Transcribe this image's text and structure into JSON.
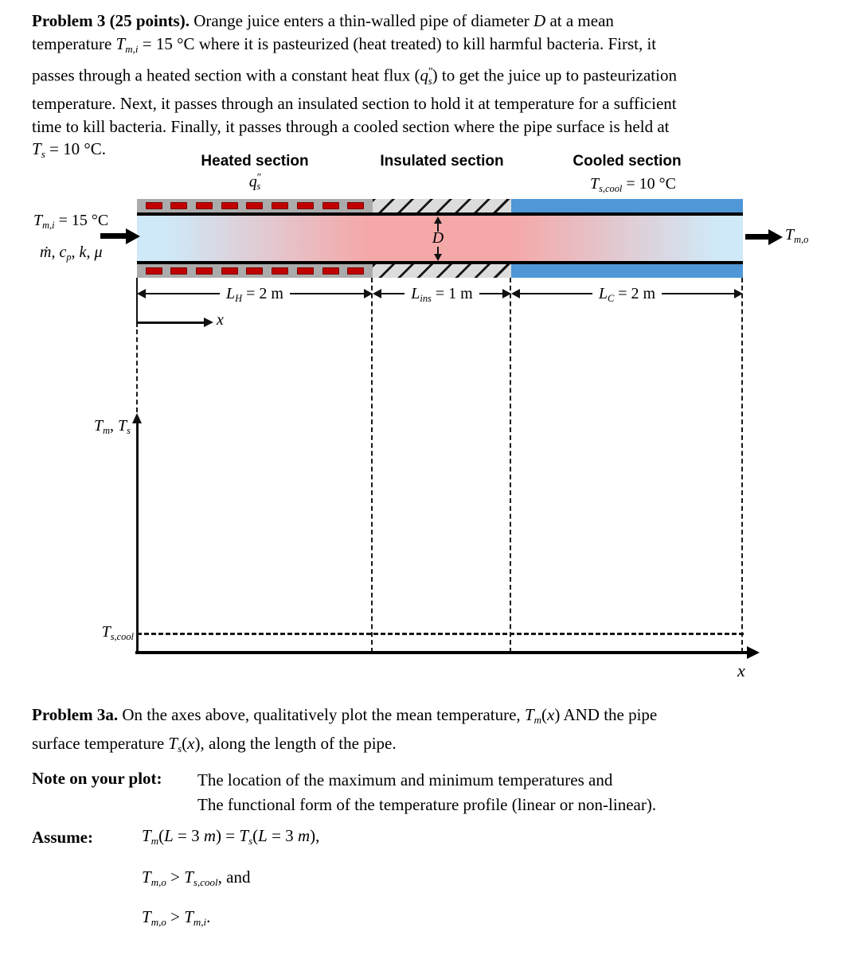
{
  "problem": {
    "runs": [
      {
        "t": "Problem 3 (25 points). ",
        "b": 1
      },
      {
        "t": "Orange juice enters a thin-walled pipe of diameter "
      },
      {
        "t": "D",
        "i": 1
      },
      {
        "t": " at a mean"
      },
      {
        "br": 1
      },
      {
        "t": "temperature "
      },
      {
        "t": "T",
        "i": 1
      },
      {
        "t": "m,i",
        "sub": 1,
        "i": 1
      },
      {
        "t": " = 15 °C where it is pasteurized (heat treated) to kill harmful bacteria. First, it"
      },
      {
        "br": 1
      },
      {
        "t": "passes through a heated section with a constant heat flux ("
      },
      {
        "t": "q",
        "i": 1
      },
      {
        "t": "″",
        "sup": 1
      },
      {
        "t": "s",
        "sub": 1,
        "i": 1,
        "pl": 1
      },
      {
        "t": ") to get the juice up to pasteurization"
      },
      {
        "br": 1
      },
      {
        "t": "temperature. Next, it passes through an insulated section to hold it at temperature for a sufficient"
      },
      {
        "br": 1
      },
      {
        "t": "time to kill bacteria. Finally, it passes through a cooled section where the pipe surface is held at"
      },
      {
        "br": 1
      },
      {
        "t": "T",
        "i": 1
      },
      {
        "t": "s",
        "sub": 1,
        "i": 1
      },
      {
        "t": " = 10 °C."
      }
    ]
  },
  "diagram": {
    "labels": {
      "heated": "Heated section",
      "insulated": "Insulated section",
      "cooled": "Cooled section",
      "d": "D",
      "x_origin": "x"
    },
    "heat_flux_runs": [
      {
        "t": "q",
        "i": 1
      },
      {
        "t": "″",
        "sup": 1
      },
      {
        "t": "s",
        "sub": 1,
        "i": 1,
        "pl": 1
      }
    ],
    "cooled_temp_runs": [
      {
        "t": "T",
        "i": 1
      },
      {
        "t": "s,cool",
        "sub": 1,
        "i": 1
      },
      {
        "t": " = 10 °C"
      }
    ],
    "inlet_temp_runs": [
      {
        "t": "T",
        "i": 1
      },
      {
        "t": "m,i",
        "sub": 1,
        "i": 1
      },
      {
        "t": " = 15 °C"
      }
    ],
    "fluid_props_runs": [
      {
        "t": "ṁ",
        "i": 1
      },
      {
        "t": ", "
      },
      {
        "t": "c",
        "i": 1
      },
      {
        "t": "p",
        "sub": 1,
        "i": 1
      },
      {
        "t": ", "
      },
      {
        "t": "k",
        "i": 1
      },
      {
        "t": ", "
      },
      {
        "t": "μ",
        "i": 1
      }
    ],
    "outlet_temp_runs": [
      {
        "t": "T",
        "i": 1
      },
      {
        "t": "m,o",
        "sub": 1,
        "i": 1
      }
    ],
    "dim_heated_runs": [
      {
        "t": "L",
        "i": 1
      },
      {
        "t": "H",
        "sub": 1,
        "i": 1
      },
      {
        "t": " = 2 m"
      }
    ],
    "dim_insulated_runs": [
      {
        "t": "L",
        "i": 1
      },
      {
        "t": "ins",
        "sub": 1,
        "i": 1
      },
      {
        "t": " = 1 m"
      }
    ],
    "dim_cooled_runs": [
      {
        "t": "L",
        "i": 1
      },
      {
        "t": "C",
        "sub": 1,
        "i": 1
      },
      {
        "t": " = 2 m"
      }
    ],
    "heater_dashes": 9
  },
  "graph": {
    "y_axis_runs": [
      {
        "t": "T",
        "i": 1
      },
      {
        "t": "m",
        "sub": 1,
        "i": 1
      },
      {
        "t": ", "
      },
      {
        "t": "T",
        "i": 1
      },
      {
        "t": "s",
        "sub": 1,
        "i": 1
      }
    ],
    "ts_cool_runs": [
      {
        "t": "T",
        "i": 1
      },
      {
        "t": "s,cool",
        "sub": 1,
        "i": 1
      }
    ],
    "x_label": "x"
  },
  "problem_3a": {
    "runs": [
      {
        "t": "Problem 3a. ",
        "b": 1
      },
      {
        "t": "On the axes above, qualitatively plot the mean temperature, "
      },
      {
        "t": "T",
        "i": 1
      },
      {
        "t": "m",
        "sub": 1,
        "i": 1
      },
      {
        "t": "("
      },
      {
        "t": "x",
        "i": 1
      },
      {
        "t": ") AND the pipe"
      },
      {
        "br": 1
      },
      {
        "t": "surface temperature "
      },
      {
        "t": "T",
        "i": 1
      },
      {
        "t": "s",
        "sub": 1,
        "i": 1
      },
      {
        "t": "("
      },
      {
        "t": "x",
        "i": 1
      },
      {
        "t": "), along the length of the pipe."
      }
    ]
  },
  "note": {
    "label": "Note on your plot:",
    "line1": "The location of the maximum and minimum temperatures and",
    "line2": "The functional form of the temperature profile (linear or non-linear)."
  },
  "assume": {
    "label": "Assume:",
    "eq1_runs": [
      {
        "t": "T",
        "i": 1
      },
      {
        "t": "m",
        "sub": 1,
        "i": 1
      },
      {
        "t": "("
      },
      {
        "t": "L",
        "i": 1
      },
      {
        "t": " = 3 "
      },
      {
        "t": "m",
        "i": 1
      },
      {
        "t": ") = "
      },
      {
        "t": "T",
        "i": 1
      },
      {
        "t": "s",
        "sub": 1,
        "i": 1
      },
      {
        "t": "("
      },
      {
        "t": "L",
        "i": 1
      },
      {
        "t": " = 3 "
      },
      {
        "t": "m",
        "i": 1
      },
      {
        "t": "),"
      }
    ],
    "eq2_runs": [
      {
        "t": "T",
        "i": 1
      },
      {
        "t": "m,o",
        "sub": 1,
        "i": 1
      },
      {
        "t": " > "
      },
      {
        "t": "T",
        "i": 1
      },
      {
        "t": "s,cool",
        "sub": 1,
        "i": 1
      },
      {
        "t": ", and"
      }
    ],
    "eq3_runs": [
      {
        "t": "T",
        "i": 1
      },
      {
        "t": "m,o",
        "sub": 1,
        "i": 1
      },
      {
        "t": " > "
      },
      {
        "t": "T",
        "i": 1
      },
      {
        "t": "m,i",
        "sub": 1,
        "i": 1
      },
      {
        "t": "."
      }
    ]
  },
  "colors": {
    "heater_gray": "#ababab",
    "heater_red": "#c00000",
    "heater_red_dark": "#7a0000",
    "insul_gray": "#dcdcdc",
    "cool_blue": "#4f97d6",
    "fluid_cold": "#cfe9f8",
    "fluid_hot": "#f5a8a8"
  }
}
